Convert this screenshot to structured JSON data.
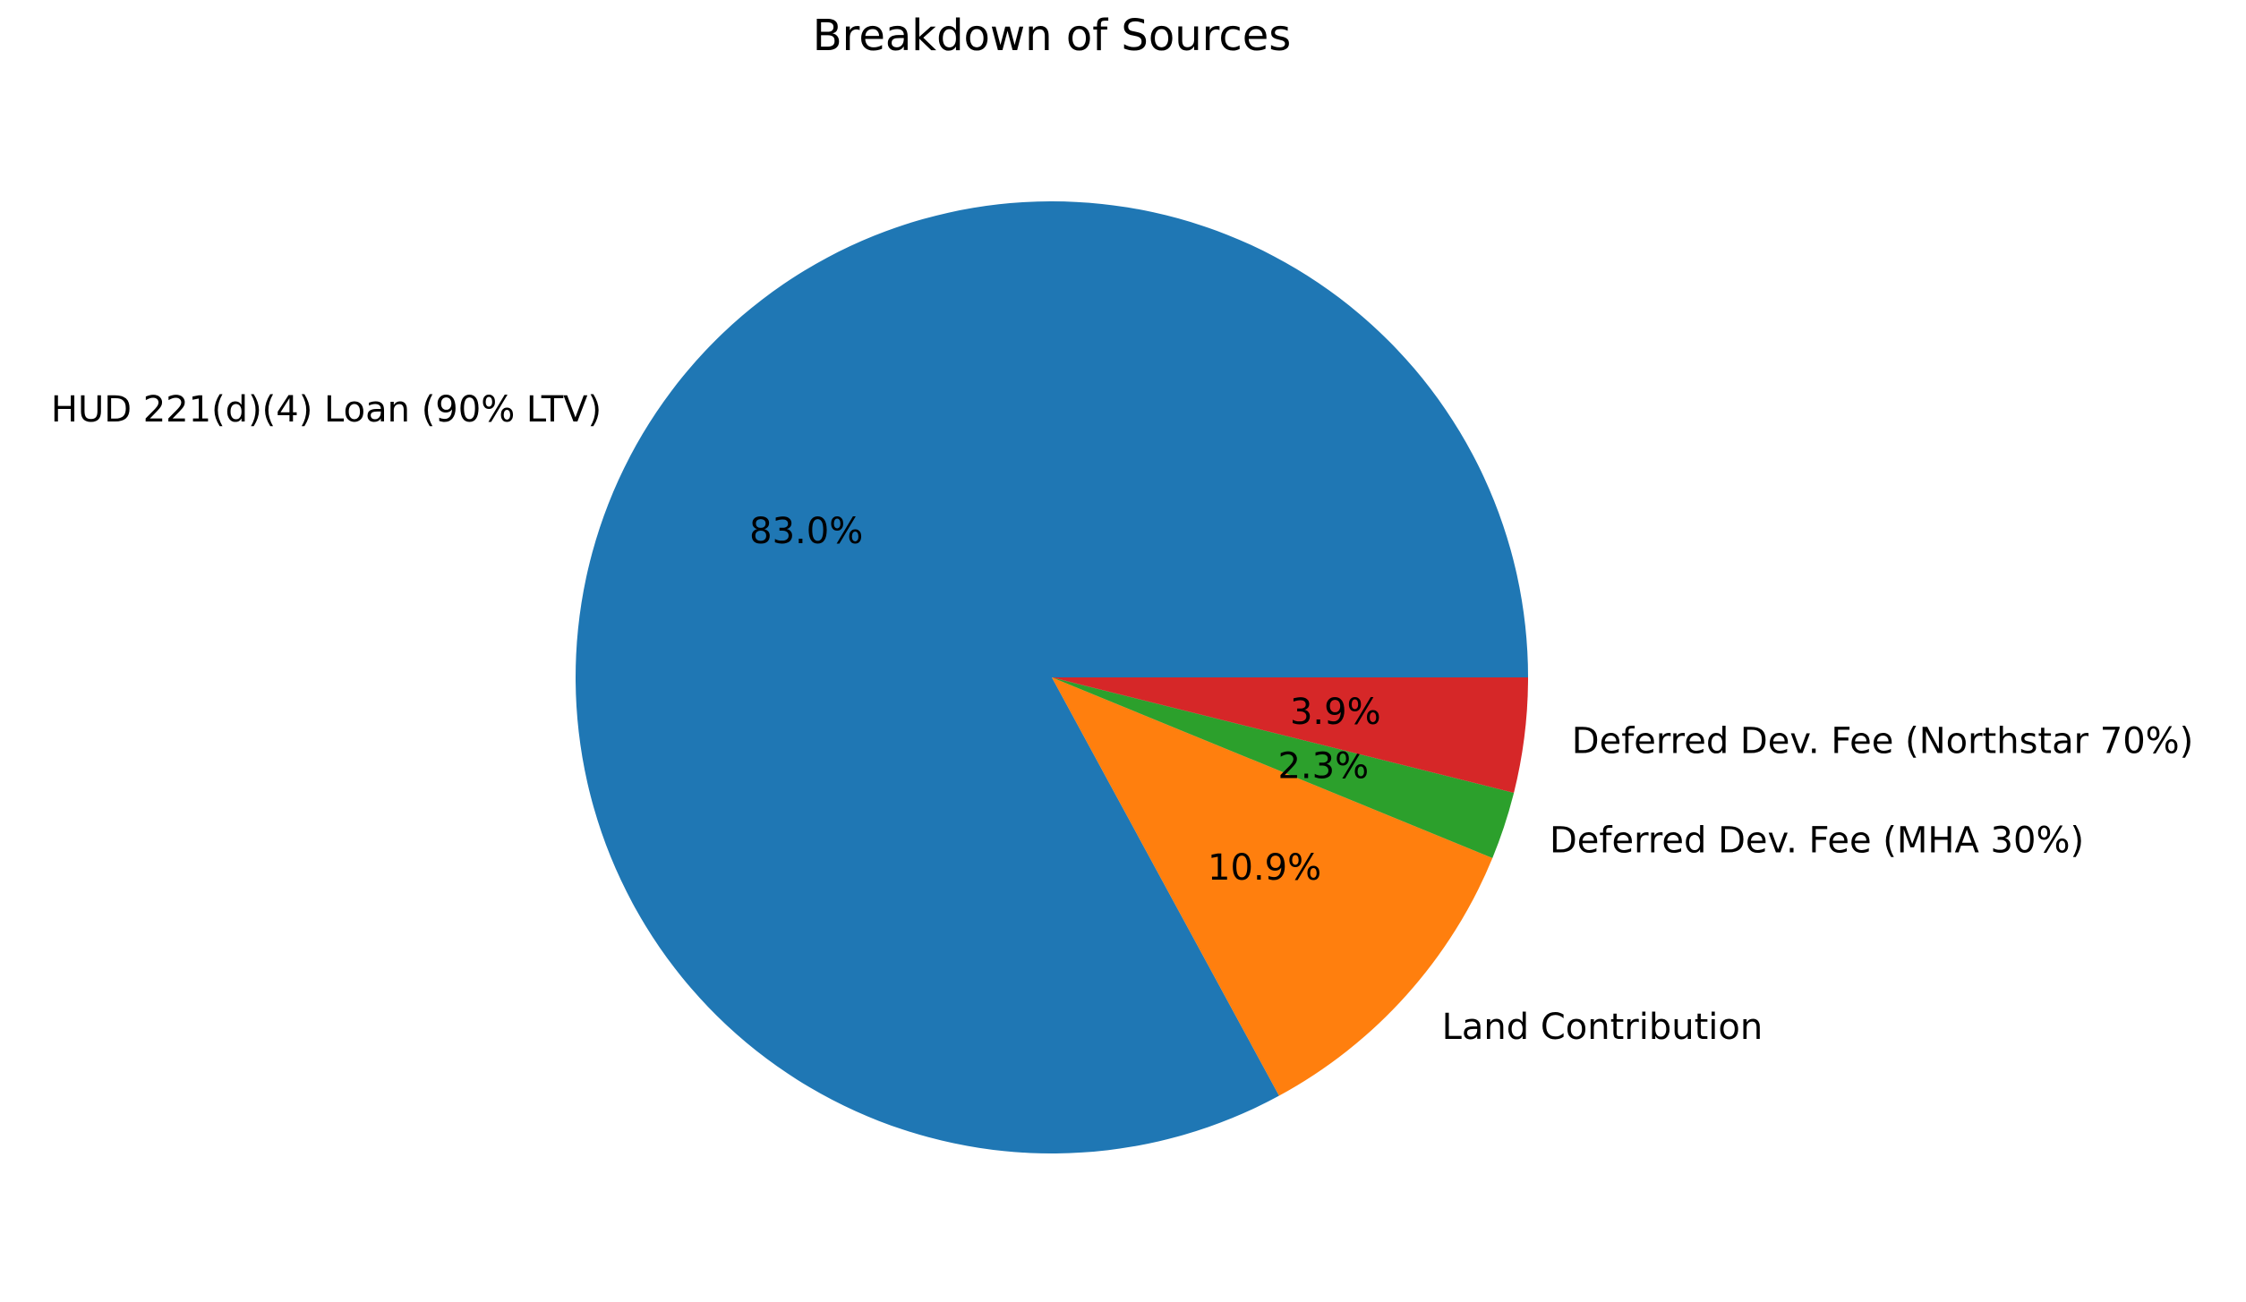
{
  "chart_data": {
    "type": "pie",
    "title": "Breakdown of Sources",
    "slices": [
      {
        "label": "HUD 221(d)(4) Loan (90% LTV)",
        "value": 83.0,
        "pct_label": "83.0%",
        "color": "#1f77b4"
      },
      {
        "label": "Land Contribution",
        "value": 10.9,
        "pct_label": "10.9%",
        "color": "#ff7f0e"
      },
      {
        "label": "Deferred Dev. Fee (MHA 30%)",
        "value": 2.3,
        "pct_label": "2.3%",
        "color": "#2ca02c"
      },
      {
        "label": "Deferred Dev. Fee (Northstar 70%)",
        "value": 3.9,
        "pct_label": "3.9%",
        "color": "#d62728"
      }
    ],
    "start_angle": 0,
    "counterclock": true,
    "legend_position": "none",
    "grid": false,
    "background": "#ffffff",
    "pct_label_radius_ratio": 0.6,
    "outer_label_radius_ratio": 1.1
  }
}
